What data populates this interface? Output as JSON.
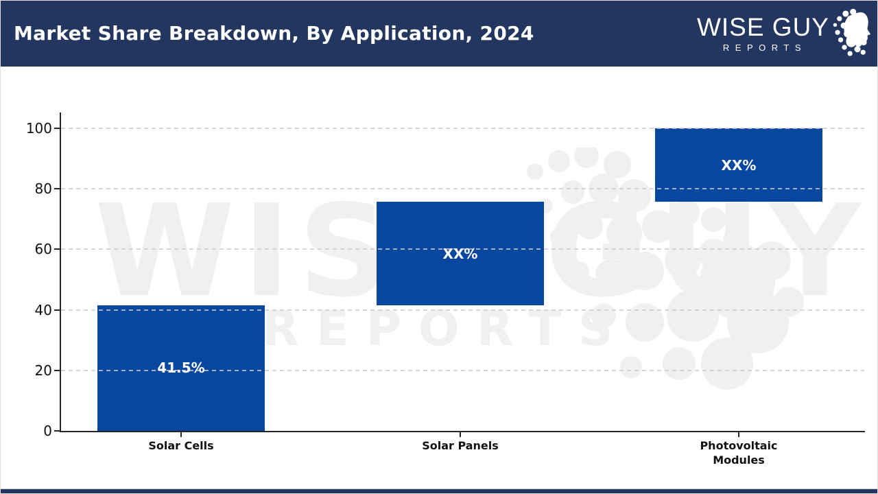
{
  "header": {
    "title": "Market Share Breakdown, By Application, 2024",
    "bg_color": "#22365f",
    "logo": {
      "primary": "WISE GUY",
      "secondary": "REPORTS"
    }
  },
  "watermark": {
    "primary": "WISE GUY",
    "secondary": "REPORTS"
  },
  "chart_data": {
    "type": "bar",
    "subtype": "floating-segment-waterfall",
    "title": "Market Share Breakdown, By Application, 2024",
    "categories": [
      "Solar Cells",
      "Solar Panels",
      "Photovoltaic Modules"
    ],
    "segments": [
      {
        "category": "Solar Cells",
        "start": 0,
        "end": 41.5,
        "label": "41.5%"
      },
      {
        "category": "Solar Panels",
        "start": 41.5,
        "end": 75.7,
        "label": "XX%"
      },
      {
        "category": "Photovoltaic Modules",
        "start": 75.7,
        "end": 100,
        "label": "XX%"
      }
    ],
    "ylim": [
      0,
      100
    ],
    "yticks": [
      0,
      20,
      40,
      60,
      80,
      100
    ],
    "xlabel": "",
    "ylabel": "",
    "bar_color": "#0847a0",
    "value_label_color": "#ffffff",
    "axis_color": "#262626",
    "grid": "horizontal-dashed",
    "legend": "none"
  }
}
